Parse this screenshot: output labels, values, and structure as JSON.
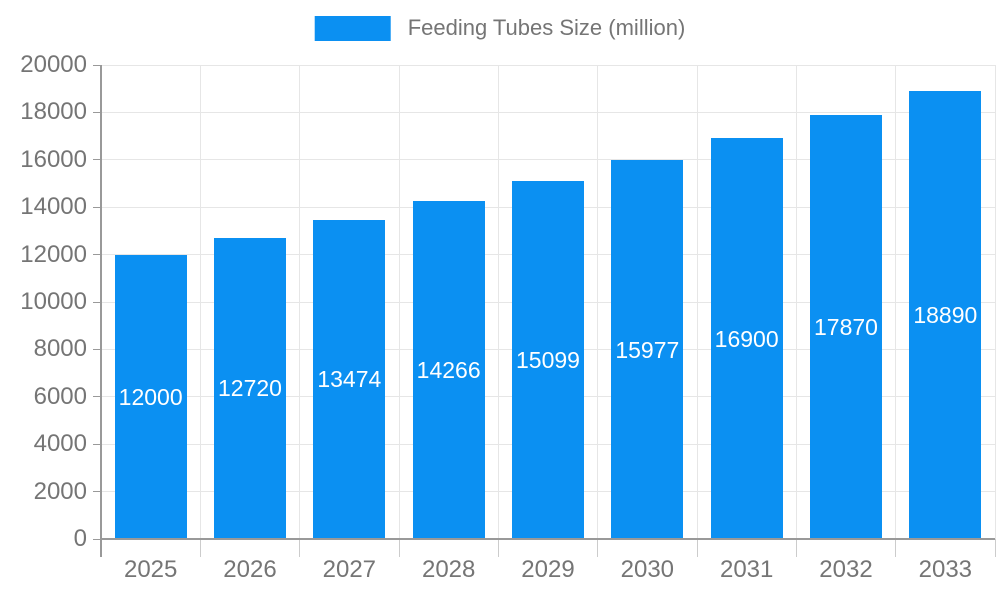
{
  "legend": {
    "label": "Feeding Tubes Size (million)"
  },
  "colors": {
    "bar": "#0b90f2",
    "axis": "#999999",
    "grid": "#e6e6e6",
    "xtick": "#cccccc",
    "text": "#757575",
    "bar_label": "#ffffff",
    "background": "#ffffff"
  },
  "chart_data": {
    "type": "bar",
    "title": "Feeding Tubes Size (million)",
    "categories": [
      "2025",
      "2026",
      "2027",
      "2028",
      "2029",
      "2030",
      "2031",
      "2032",
      "2033"
    ],
    "values": [
      12000,
      12720,
      13474,
      14266,
      15099,
      15977,
      16900,
      17870,
      18890
    ],
    "series": [
      {
        "name": "Feeding Tubes Size (million)",
        "values": [
          12000,
          12720,
          13474,
          14266,
          15099,
          15977,
          16900,
          17870,
          18890
        ]
      }
    ],
    "xlabel": "",
    "ylabel": "",
    "ylim": [
      0,
      20000
    ],
    "ytick_step": 2000,
    "yticks": [
      0,
      2000,
      4000,
      6000,
      8000,
      10000,
      12000,
      14000,
      16000,
      18000,
      20000
    ],
    "grid": true,
    "legend_position": "top-center",
    "bar_labels": "inside-middle"
  }
}
